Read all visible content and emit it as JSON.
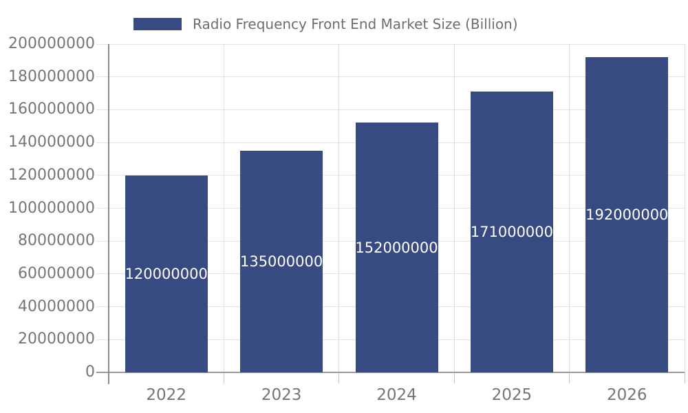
{
  "legend": {
    "label": "Radio Frequency Front End Market Size (Billion)"
  },
  "colors": {
    "bar": "#374a82",
    "bar_label": "#ffffff",
    "grid": "#e2e2e2",
    "tick": "#c4c4c4",
    "axis": "#999999",
    "y_axis": "#8c8c8c",
    "label_text": "#757575",
    "background": "#ffffff"
  },
  "chart_data": {
    "type": "bar",
    "title": "Radio Frequency Front End Market Size (Billion)",
    "categories": [
      "2022",
      "2023",
      "2024",
      "2025",
      "2026"
    ],
    "values": [
      120000000,
      135000000,
      152000000,
      171000000,
      192000000
    ],
    "data_labels": [
      "120000000",
      "135000000",
      "152000000",
      "171000000",
      "192000000"
    ],
    "xlabel": "",
    "ylabel": "",
    "ylim": [
      0,
      200000000
    ],
    "ytick_step": 20000000,
    "ytick_labels": [
      "0",
      "20000000",
      "40000000",
      "60000000",
      "80000000",
      "100000000",
      "120000000",
      "140000000",
      "160000000",
      "180000000",
      "200000000"
    ],
    "grid": true,
    "legend_position": "top"
  }
}
